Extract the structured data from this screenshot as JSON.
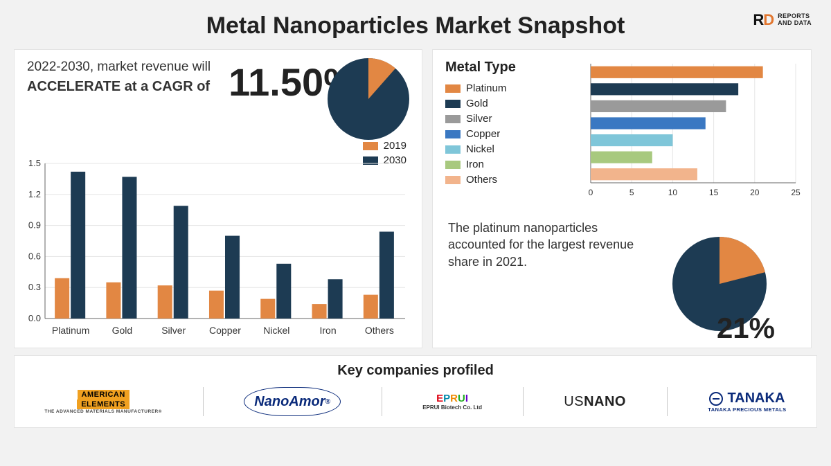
{
  "title": "Metal Nanoparticles Market Snapshot",
  "logo": {
    "brand_r": "R",
    "brand_d": "D",
    "line1": "REPORTS",
    "line2": "AND DATA"
  },
  "colors": {
    "orange": "#e28743",
    "navy": "#1d3b53",
    "silver": "#9a9a9a",
    "blue": "#3a78c2",
    "teal": "#7fc6d9",
    "olive": "#a8c97f",
    "peach": "#f2b48c",
    "axis": "#666666",
    "grid": "#e5e5e5",
    "bg": "#ffffff"
  },
  "left": {
    "period_text": "2022-2030, market revenue will",
    "accel_text": "ACCELERATE at a CAGR of",
    "cagr": "11.50%",
    "pie1_pct": 11.5,
    "legend": {
      "y2019": "2019",
      "y2030": "2030"
    },
    "grouped": {
      "type": "grouped-bar",
      "categories": [
        "Platinum",
        "Gold",
        "Silver",
        "Copper",
        "Nickel",
        "Iron",
        "Others"
      ],
      "series": [
        {
          "name": "2019",
          "colorKey": "orange",
          "values": [
            0.39,
            0.35,
            0.32,
            0.27,
            0.19,
            0.14,
            0.23
          ]
        },
        {
          "name": "2030",
          "colorKey": "navy",
          "values": [
            1.42,
            1.37,
            1.09,
            0.8,
            0.53,
            0.38,
            0.84
          ]
        }
      ],
      "ylim": [
        0,
        1.5
      ],
      "ytick_step": 0.3,
      "label_fontsize": 14,
      "bar_group_width": 0.62
    }
  },
  "right": {
    "heading": "Metal Type",
    "legend_items": [
      {
        "label": "Platinum",
        "colorKey": "orange"
      },
      {
        "label": "Gold",
        "colorKey": "navy"
      },
      {
        "label": "Silver",
        "colorKey": "silver"
      },
      {
        "label": "Copper",
        "colorKey": "blue"
      },
      {
        "label": "Nickel",
        "colorKey": "teal"
      },
      {
        "label": "Iron",
        "colorKey": "olive"
      },
      {
        "label": "Others",
        "colorKey": "peach"
      }
    ],
    "hbar": {
      "type": "horizontal-bar",
      "values": [
        21,
        18,
        16.5,
        14,
        10,
        7.5,
        13
      ],
      "xlim": [
        0,
        25
      ],
      "xtick_step": 5,
      "bar_height": 0.7
    },
    "share_text": "The platinum nanoparticles accounted for the largest revenue share in 2021.",
    "share_pct_label": "21%",
    "pie2_pct": 21
  },
  "companies": {
    "heading": "Key companies profiled",
    "list": [
      "AMERICAN ELEMENTS",
      "NanoAmor",
      "EPRUI Biotech Co. Ltd",
      "US NANO",
      "TANAKA PRECIOUS METALS"
    ]
  }
}
